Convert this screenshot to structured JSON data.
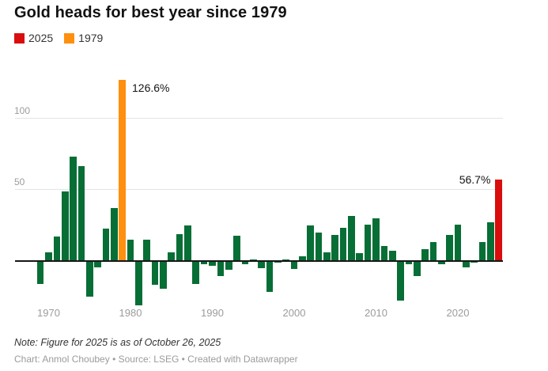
{
  "title": "Gold heads for best year since 1979",
  "legend": [
    {
      "label": "2025",
      "color": "#d90d0d"
    },
    {
      "label": "1979",
      "color": "#ff8f0e"
    }
  ],
  "chart_data": {
    "type": "bar",
    "title": "Gold heads for best year since 1979",
    "unit": "%",
    "years": [
      1969,
      1970,
      1971,
      1972,
      1973,
      1974,
      1975,
      1976,
      1977,
      1978,
      1979,
      1980,
      1981,
      1982,
      1983,
      1984,
      1985,
      1986,
      1987,
      1988,
      1989,
      1990,
      1991,
      1992,
      1993,
      1994,
      1995,
      1996,
      1997,
      1998,
      1999,
      2000,
      2001,
      2002,
      2003,
      2004,
      2005,
      2006,
      2007,
      2008,
      2009,
      2010,
      2011,
      2012,
      2013,
      2014,
      2015,
      2016,
      2017,
      2018,
      2019,
      2020,
      2021,
      2022,
      2023,
      2024,
      2025
    ],
    "values": [
      -16,
      6,
      16.7,
      48.5,
      72.6,
      66.2,
      -24.8,
      -4.1,
      22.6,
      37,
      126.6,
      14.6,
      -30.6,
      14.9,
      -16.3,
      -19.2,
      6,
      18.3,
      24.4,
      -15.7,
      -2.2,
      -3.1,
      -10,
      -5.7,
      17.4,
      -2.2,
      1,
      -4.6,
      -21.2,
      -0.8,
      0.9,
      -5.4,
      2.8,
      24.8,
      19.9,
      5.8,
      18,
      22.8,
      31.1,
      5.5,
      25,
      29.5,
      10,
      6.9,
      -27.2,
      -2.2,
      -10.4,
      8.3,
      12.8,
      -1.7,
      18,
      25,
      -3.9,
      -0.3,
      12.8,
      26.7,
      56.7
    ],
    "default_color": "#076e35",
    "highlight_colors": {
      "1979": "#ff8f0e",
      "2025": "#d90d0d"
    },
    "annotations": [
      {
        "year": 1979,
        "label": "126.6%"
      },
      {
        "year": 2025,
        "label": "56.7%"
      }
    ],
    "y_ticks": [
      50,
      100
    ],
    "x_ticks": [
      1970,
      1980,
      1990,
      2000,
      2010,
      2020
    ],
    "ylim": [
      -32,
      130
    ],
    "grid": true,
    "zero_line": true,
    "legend_position": "top-left"
  },
  "footer": {
    "note": "Note: Figure for 2025 is as of October 26, 2025",
    "credits": "Chart: Anmol Choubey • Source: LSEG • Created with Datawrapper"
  }
}
